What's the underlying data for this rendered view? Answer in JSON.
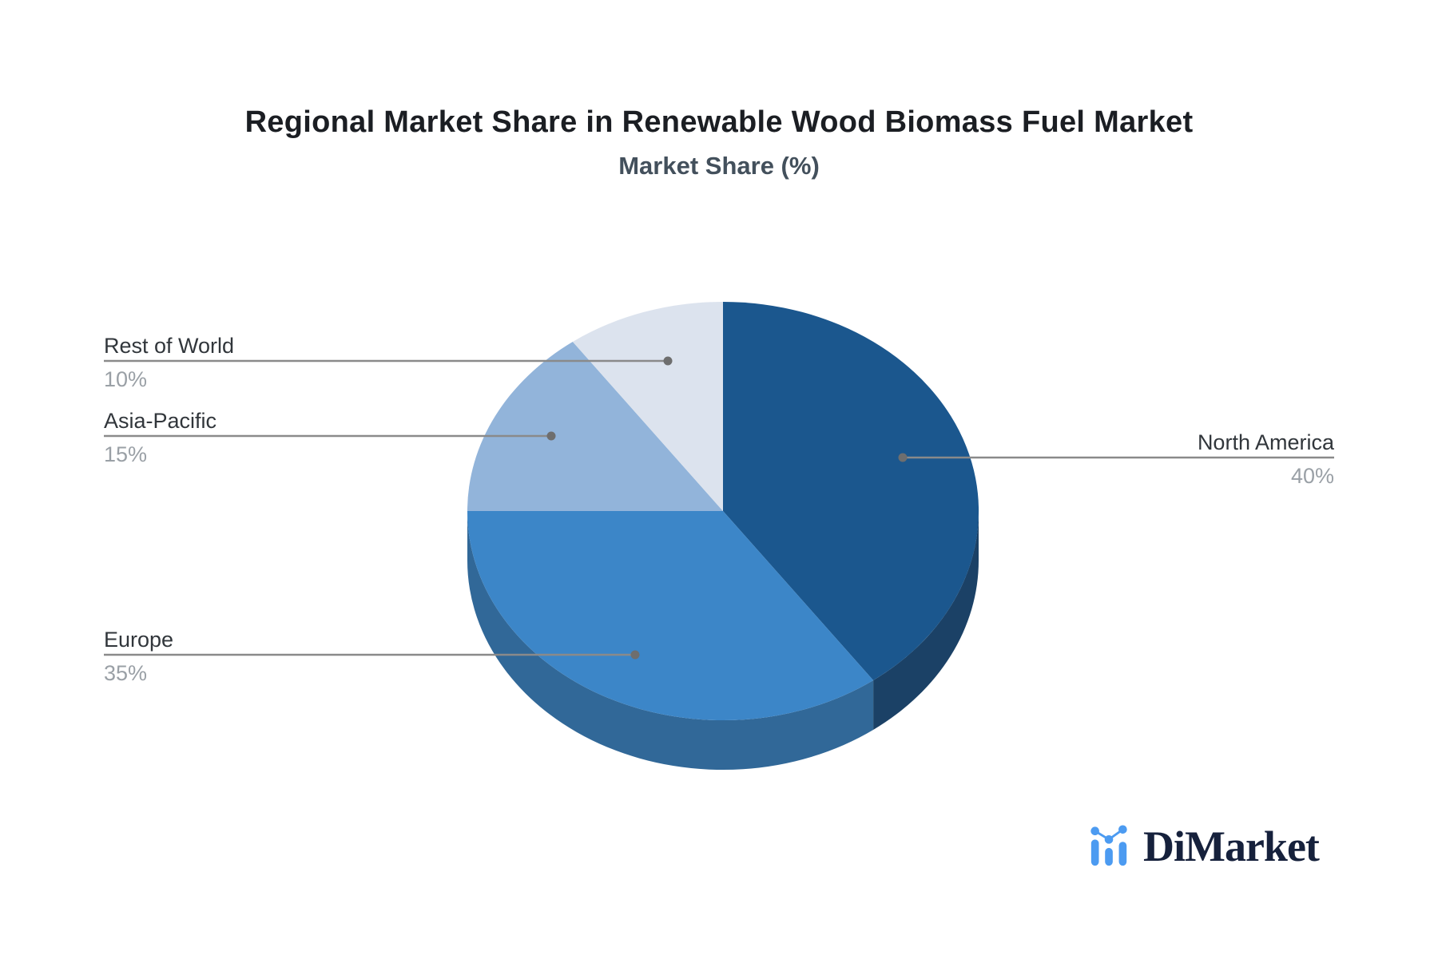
{
  "title": "Regional Market Share in Renewable Wood Biomass Fuel Market",
  "subtitle": "Market Share (%)",
  "logo": {
    "text": "DiMarket",
    "icon": "bar-line-chart-icon",
    "icon_color": "#4c9bf1",
    "text_color": "#16213c"
  },
  "style": {
    "background": "#ffffff",
    "leader_line_color": "#8a8a8a",
    "leader_dot_color": "#6e6e6e",
    "label_name_color": "#31363b",
    "label_value_color": "#9aa0a6"
  },
  "chart_data": {
    "type": "pie",
    "title": "Regional Market Share in Renewable Wood Biomass Fuel Market",
    "subtitle": "Market Share (%)",
    "unit": "%",
    "effect": "3d-depth",
    "start_angle_clockwise_from_top": 0,
    "legend": "none",
    "slices": [
      {
        "label": "North America",
        "value": 40,
        "display": "40%",
        "color": "#1b578e",
        "side_color": "#1b4166",
        "label_side": "right"
      },
      {
        "label": "Europe",
        "value": 35,
        "display": "35%",
        "color": "#3c86c8",
        "side_color": "#316898",
        "label_side": "left"
      },
      {
        "label": "Asia-Pacific",
        "value": 15,
        "display": "15%",
        "color": "#92b4da",
        "label_side": "left"
      },
      {
        "label": "Rest of World",
        "value": 10,
        "display": "10%",
        "color": "#dce3ee",
        "label_side": "left"
      }
    ]
  }
}
